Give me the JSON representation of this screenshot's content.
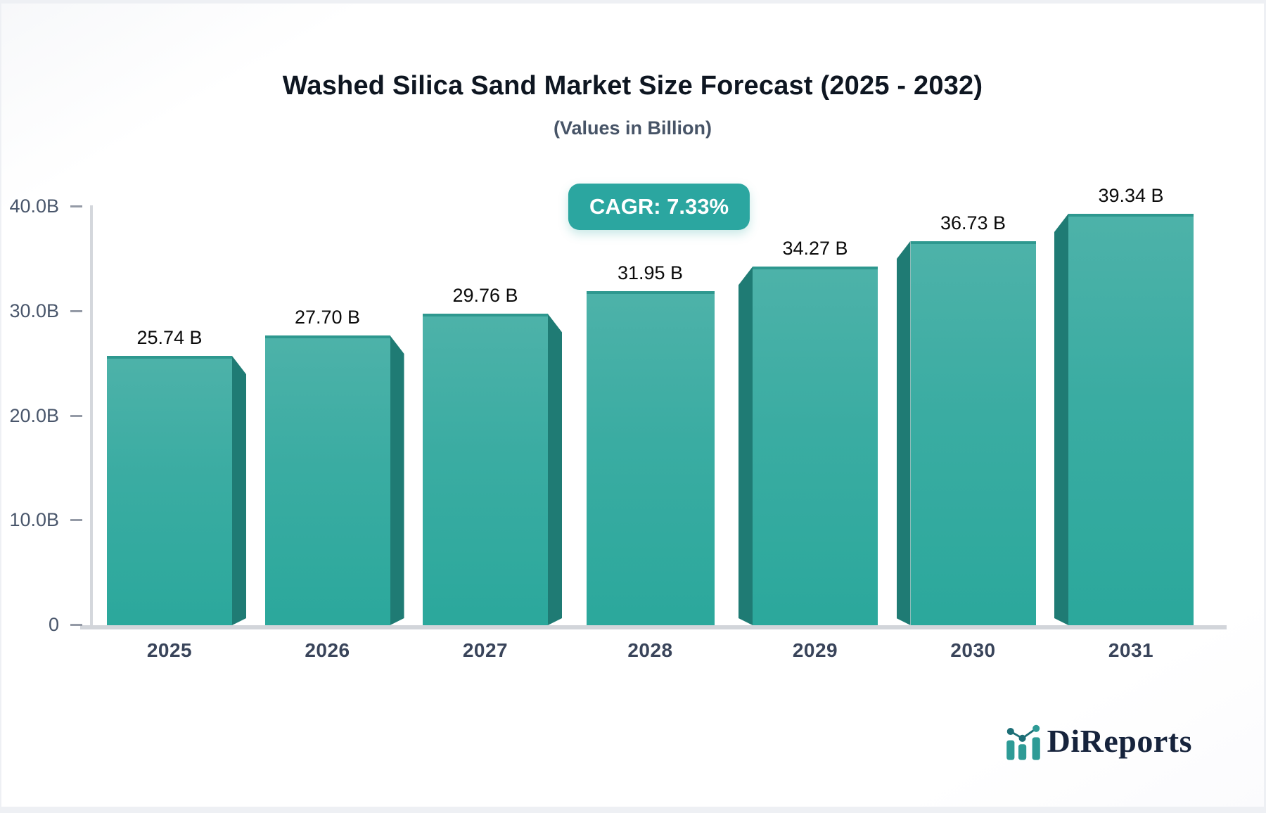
{
  "page": {
    "background": "#eef0f4",
    "card_background": "#ffffff"
  },
  "header": {
    "title": "Washed Silica Sand Market Size Forecast (2025 - 2032)",
    "subtitle": "(Values in Billion)"
  },
  "badge": {
    "label": "CAGR: 7.33%",
    "background": "#2ba6a0",
    "text_color": "#ffffff"
  },
  "chart_data": {
    "type": "bar",
    "title": "Washed Silica Sand Market Size Forecast (2025 - 2032)",
    "subtitle": "(Values in Billion)",
    "categories": [
      "2025",
      "2026",
      "2027",
      "2028",
      "2029",
      "2030",
      "2031"
    ],
    "values": [
      25.74,
      27.7,
      29.76,
      31.95,
      34.27,
      36.73,
      39.34
    ],
    "value_labels": [
      "25.74 B",
      "27.70 B",
      "29.76 B",
      "31.95 B",
      "34.27 B",
      "36.73 B",
      "39.34 B"
    ],
    "xlabel": "",
    "ylabel": "",
    "ylim": [
      0,
      40
    ],
    "yticks": [
      {
        "value": 0,
        "label": "0"
      },
      {
        "value": 10,
        "label": "10.0B"
      },
      {
        "value": 20,
        "label": "20.0B"
      },
      {
        "value": 30,
        "label": "30.0B"
      },
      {
        "value": 40,
        "label": "40.0B"
      }
    ],
    "grid": false,
    "legend": false,
    "annotation": "CAGR: 7.33%",
    "bar_color_top": "#4db2a9",
    "bar_color_bottom": "#2ba89c",
    "bar_side_color": "#1f7b74",
    "bar_top_line_color": "#2e988f",
    "effect": "pseudo-3d side faces angled toward center bar (2028)"
  },
  "logo": {
    "text": "DiReports",
    "icon": "bar-chart-logo-icon",
    "text_color": "#16233c",
    "teal": "#2e9b96",
    "dark_teal": "#1d6f77"
  }
}
